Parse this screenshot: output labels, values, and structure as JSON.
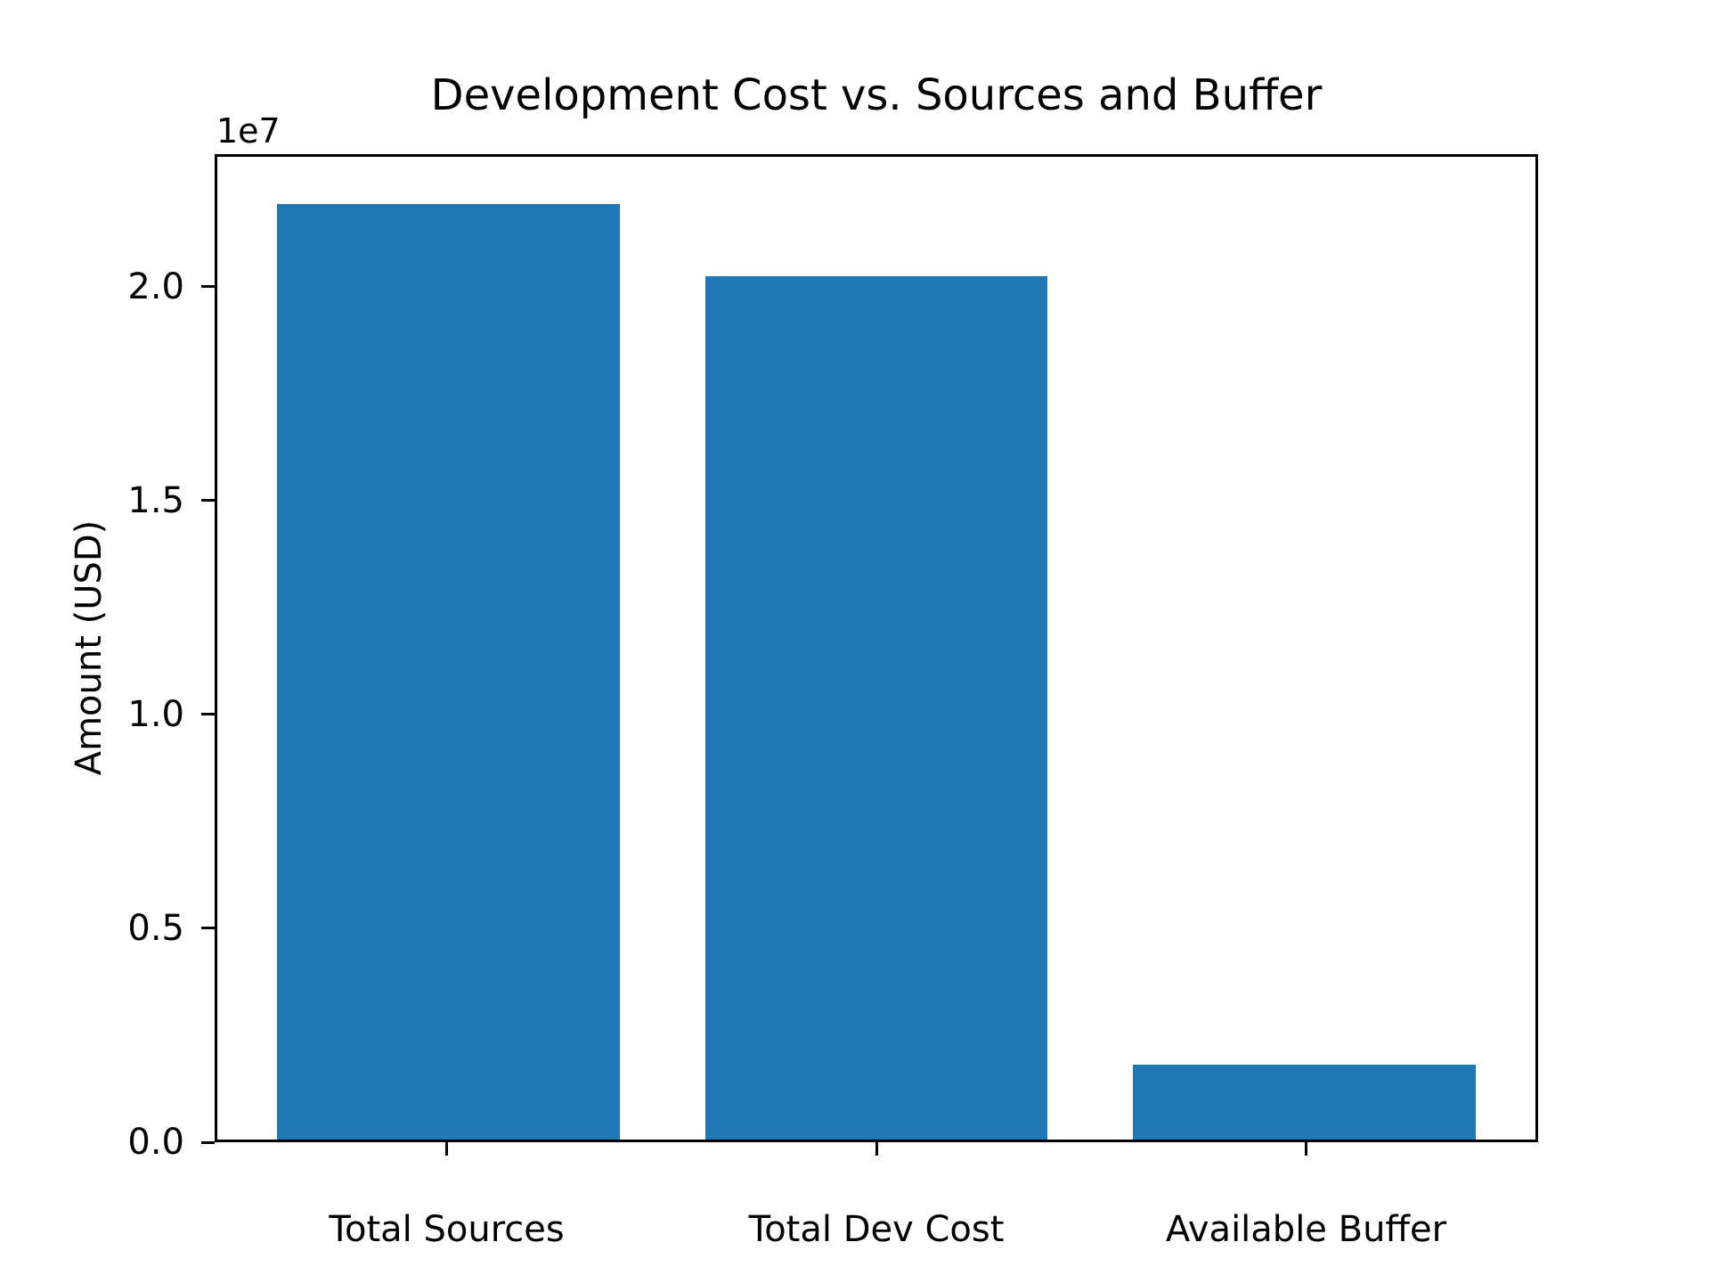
{
  "chart_data": {
    "type": "bar",
    "title": "Development Cost vs. Sources and Buffer",
    "ylabel": "Amount (USD)",
    "xlabel": "",
    "y_offset_label": "1e7",
    "categories": [
      "Total Sources",
      "Total Dev Cost",
      "Available Buffer"
    ],
    "values": [
      22000000,
      20300000,
      1750000
    ],
    "bar_color": "#1f77b4",
    "axis_color": "#000000",
    "background_color": "#ffffff",
    "ylim": [
      0,
      23100000
    ],
    "yticks": [
      0,
      5000000,
      10000000,
      15000000,
      20000000
    ],
    "ytick_labels": [
      "0.0",
      "0.5",
      "1.0",
      "1.5",
      "2.0"
    ],
    "bar_width_fraction": 0.8,
    "grid": false,
    "legend_position": "none"
  }
}
